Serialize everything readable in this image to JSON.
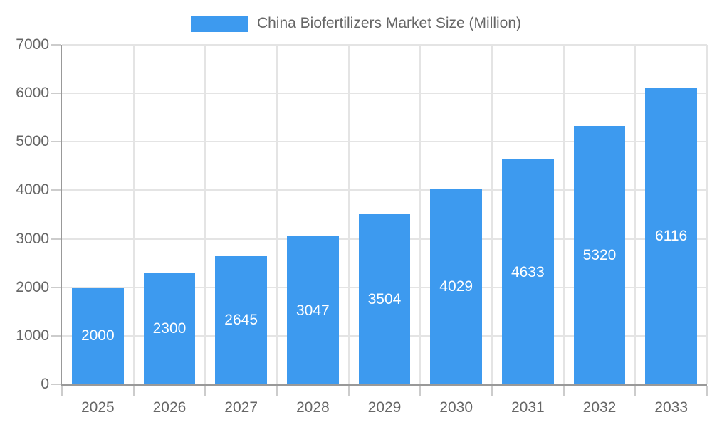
{
  "chart_data": {
    "type": "bar",
    "title": "China Biofertilizers Market Size (Million)",
    "categories": [
      "2025",
      "2026",
      "2027",
      "2028",
      "2029",
      "2030",
      "2031",
      "2032",
      "2033"
    ],
    "values": [
      2000,
      2300,
      2645,
      3047,
      3504,
      4029,
      4633,
      5320,
      6116
    ],
    "xlabel": "",
    "ylabel": "",
    "ylim": [
      0,
      7000
    ],
    "yticks": [
      0,
      1000,
      2000,
      3000,
      4000,
      5000,
      6000,
      7000
    ],
    "grid": true,
    "legend_position": "top",
    "value_labels": "inside-center",
    "colors": {
      "bar": "#3D9AEF",
      "bar_label": "#ffffff",
      "axis_line": "#999999",
      "tick": "#cccccc",
      "gridline": "#e4e4e4",
      "text": "#666666"
    }
  }
}
